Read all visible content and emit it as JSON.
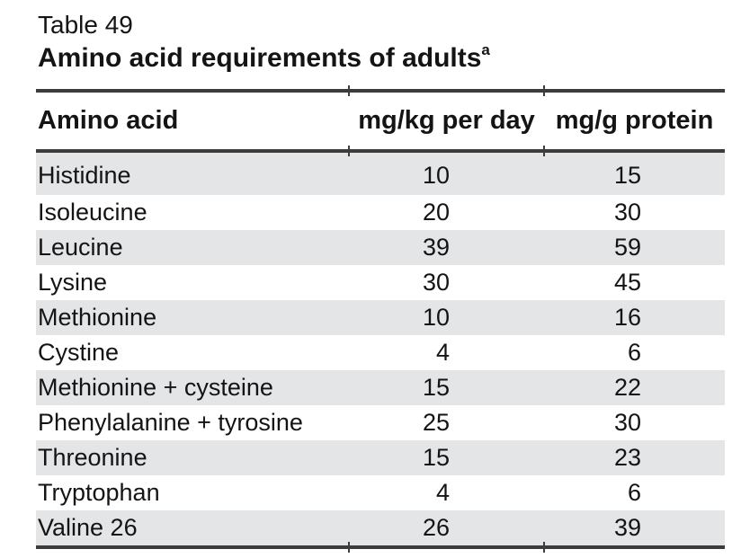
{
  "document": {
    "table_label": "Table 49",
    "title": "Amino acid requirements of adults",
    "title_superscript": "a"
  },
  "table": {
    "columns": [
      {
        "label": "Amino acid"
      },
      {
        "label": "mg/kg per day"
      },
      {
        "label": "mg/g protein"
      }
    ],
    "rows": [
      {
        "amino_acid": "Histidine",
        "mg_kg_per_day": "10",
        "mg_g_protein": "15"
      },
      {
        "amino_acid": "Isoleucine",
        "mg_kg_per_day": "20",
        "mg_g_protein": "30"
      },
      {
        "amino_acid": "Leucine",
        "mg_kg_per_day": "39",
        "mg_g_protein": "59"
      },
      {
        "amino_acid": "Lysine",
        "mg_kg_per_day": "30",
        "mg_g_protein": "45"
      },
      {
        "amino_acid": "Methionine",
        "mg_kg_per_day": "10",
        "mg_g_protein": "16"
      },
      {
        "amino_acid": "Cystine",
        "mg_kg_per_day": "4",
        "mg_g_protein": "6"
      },
      {
        "amino_acid": "Methionine + cysteine",
        "mg_kg_per_day": "15",
        "mg_g_protein": "22"
      },
      {
        "amino_acid": "Phenylalanine + tyrosine",
        "mg_kg_per_day": "25",
        "mg_g_protein": "30"
      },
      {
        "amino_acid": "Threonine",
        "mg_kg_per_day": "15",
        "mg_g_protein": "23"
      },
      {
        "amino_acid": "Tryptophan",
        "mg_kg_per_day": "4",
        "mg_g_protein": "6"
      },
      {
        "amino_acid": "Valine 26",
        "mg_kg_per_day": "26",
        "mg_g_protein": "39"
      }
    ]
  },
  "colors": {
    "background": "#ffffff",
    "row_stripe": "#e4e5e6",
    "rule": "#3c3c3c",
    "text": "#141414"
  }
}
